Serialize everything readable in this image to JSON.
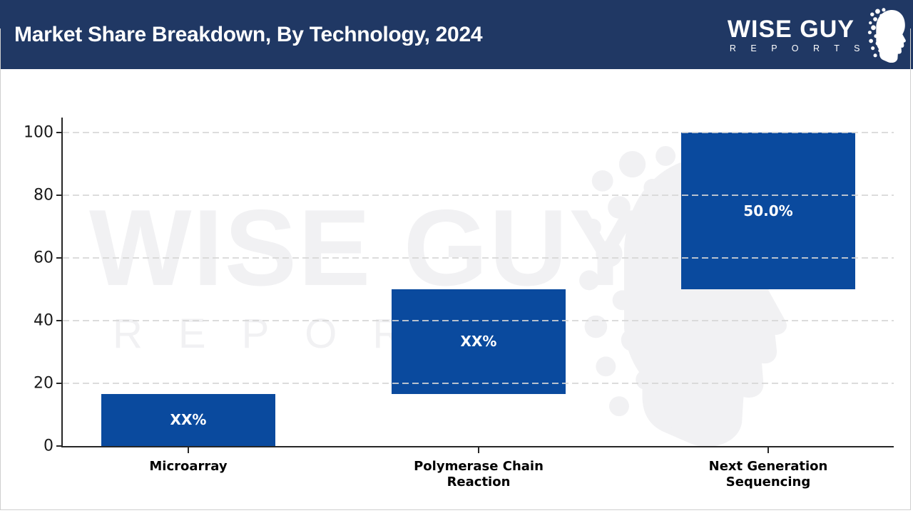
{
  "header": {
    "title": "Market Share Breakdown, By Technology, 2024",
    "bg_color": "#203864",
    "logo": {
      "line1": "WISE GUY",
      "line2": "R E P O R T S"
    }
  },
  "watermark": {
    "line1": "WISE GUY",
    "line2": "REPORTS"
  },
  "chart_data": {
    "type": "bar",
    "subtype": "waterfall",
    "title": "Market Share Breakdown, By Technology, 2024",
    "categories": [
      [
        "Microarray"
      ],
      [
        "Polymerase Chain",
        "Reaction"
      ],
      [
        "Next Generation",
        "Sequencing"
      ]
    ],
    "bars": [
      {
        "category": "Microarray",
        "start": 0,
        "end": 16.7,
        "label": "XX%"
      },
      {
        "category": "Polymerase Chain Reaction",
        "start": 16.7,
        "end": 50.0,
        "label": "XX%"
      },
      {
        "category": "Next Generation Sequencing",
        "start": 50.0,
        "end": 100.0,
        "label": "50.0%"
      }
    ],
    "yticks": [
      0,
      20,
      40,
      60,
      80,
      100
    ],
    "ylim": [
      0,
      104.8
    ],
    "xlabel": "",
    "ylabel": "",
    "grid": {
      "visible": true,
      "style": "dashed",
      "color": "#d6d6d6",
      "on_top": true
    },
    "bar_color": "#0a4a9e",
    "value_label_color": "#ffffff",
    "axis_color": "#262626",
    "legend": "none"
  }
}
